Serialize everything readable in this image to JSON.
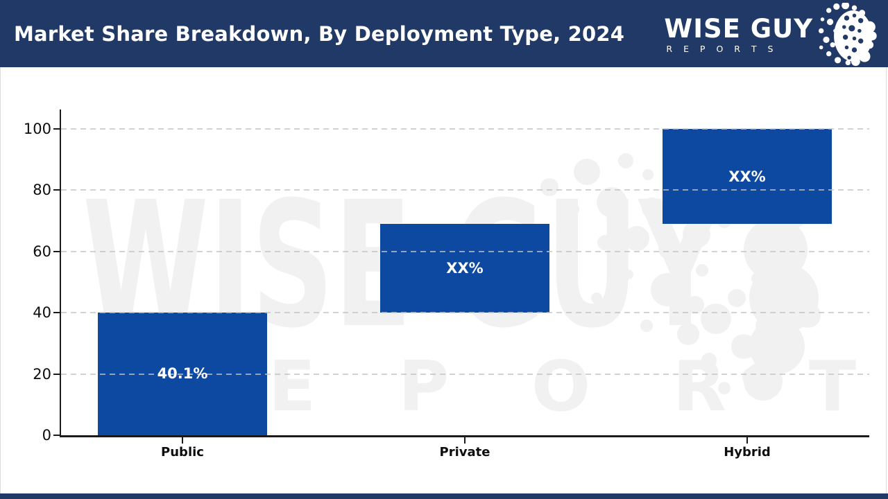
{
  "header": {
    "title": "Market Share Breakdown, By Deployment Type, 2024",
    "logo_line1": "WISE GUY",
    "logo_line2": "R E P O R T S"
  },
  "watermark": {
    "line1": "WISE GUY",
    "line2": "R E P O R T S"
  },
  "colors": {
    "header_bg": "#213966",
    "footer_bg": "#213966",
    "bar": "#0d48a1",
    "bar_label": "#ffffff",
    "axis": "#1a1a1a",
    "watermark": "#f1f1f2",
    "grid": "#c3c3c3"
  },
  "chart_data": {
    "type": "bar",
    "variant": "stacked-waterfall",
    "title": "Market Share Breakdown, By Deployment Type, 2024",
    "xlabel": "",
    "ylabel": "",
    "categories": [
      "Public",
      "Private",
      "Hybrid"
    ],
    "segments": [
      {
        "category": "Public",
        "start": 0,
        "end": 40.1,
        "value": 40.1,
        "label": "40.1%"
      },
      {
        "category": "Private",
        "start": 40.1,
        "end": 69,
        "value": 28.9,
        "label": "XX%"
      },
      {
        "category": "Hybrid",
        "start": 69,
        "end": 100,
        "value": 31,
        "label": "XX%"
      }
    ],
    "yticks": [
      0,
      20,
      40,
      60,
      80,
      100
    ],
    "ylim": [
      0,
      106
    ],
    "grid": "dashed-horizontal",
    "legend": "none"
  }
}
